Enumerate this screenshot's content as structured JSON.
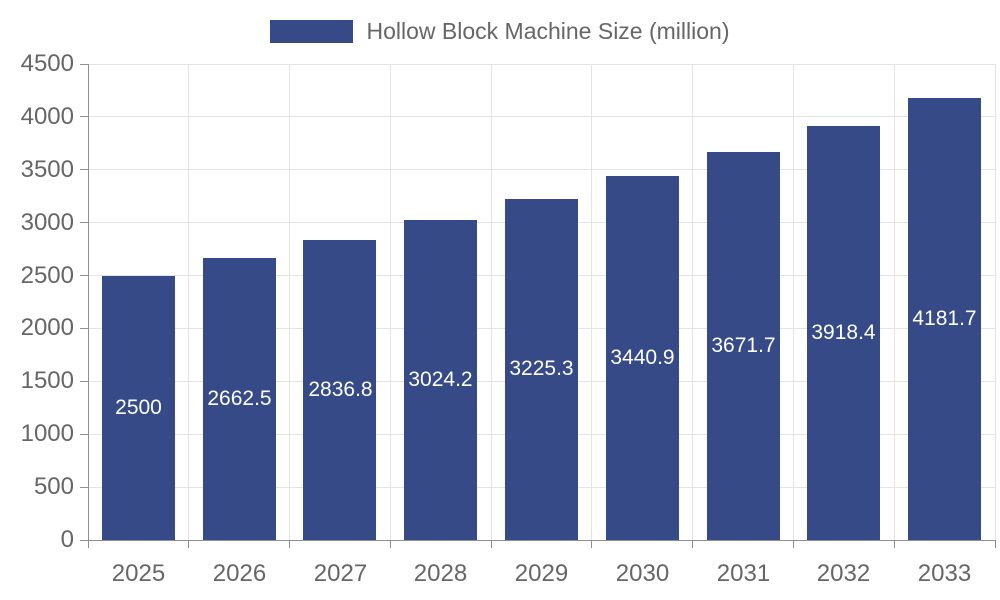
{
  "legend": {
    "label": "Hollow Block Machine Size (million)"
  },
  "colors": {
    "bar": "#354A87",
    "grid": "#e4e4e4",
    "axis": "#8f8f8f",
    "tick_text": "#666666",
    "value_label_text": "#ffffff"
  },
  "chart_data": {
    "type": "bar",
    "title": "Hollow Block Machine Size (million)",
    "categories": [
      "2025",
      "2026",
      "2027",
      "2028",
      "2029",
      "2030",
      "2031",
      "2032",
      "2033"
    ],
    "values": [
      2500,
      2662.5,
      2836.8,
      3024.2,
      3225.3,
      3440.9,
      3671.7,
      3918.4,
      4181.7
    ],
    "value_labels": [
      "2500",
      "2662.5",
      "2836.8",
      "3024.2",
      "3225.3",
      "3440.9",
      "3671.7",
      "3918.4",
      "4181.7"
    ],
    "xlabel": "",
    "ylabel": "",
    "ylim": [
      0,
      4500
    ],
    "ytick_step": 500,
    "ytick_labels": [
      "0",
      "500",
      "1000",
      "1500",
      "2000",
      "2500",
      "3000",
      "3500",
      "4000",
      "4500"
    ],
    "grid": true,
    "legend_position": "top-center",
    "value_label_position": "center-of-bar"
  }
}
